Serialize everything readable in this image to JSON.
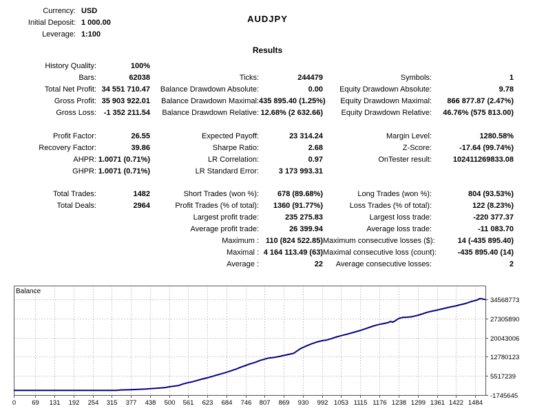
{
  "header": {
    "rows": [
      [
        "Currency:",
        "USD"
      ],
      [
        "Initial Deposit:",
        "1 000.00"
      ],
      [
        "Leverage:",
        "1:100"
      ]
    ],
    "symbol": "AUDJPY",
    "results_title": "Results"
  },
  "stats": {
    "block1": {
      "rows": [
        [
          "History Quality:",
          "100%",
          "",
          "",
          "",
          ""
        ],
        [
          "Bars:",
          "62038",
          "Ticks:",
          "244479",
          "Symbols:",
          "1"
        ],
        [
          "Total Net Profit:",
          "34 551 710.47",
          "Balance Drawdown Absolute:",
          "0.00",
          "Equity Drawdown Absolute:",
          "9.78"
        ],
        [
          "Gross Profit:",
          "35 903 922.01",
          "Balance Drawdown Maximal:",
          "435 895.40 (1.25%)",
          "Equity Drawdown Maximal:",
          "866 877.87 (2.47%)"
        ],
        [
          "Gross Loss:",
          "-1 352 211.54",
          "Balance Drawdown Relative:",
          "12.68% (2 632.66)",
          "Equity Drawdown Relative:",
          "46.76% (575 813.00)"
        ]
      ]
    },
    "block2": {
      "rows": [
        [
          "Profit Factor:",
          "26.55",
          "Expected Payoff:",
          "23 314.24",
          "Margin Level:",
          "1280.58%"
        ],
        [
          "Recovery Factor:",
          "39.86",
          "Sharpe Ratio:",
          "2.68",
          "Z-Score:",
          "-17.64 (99.74%)"
        ],
        [
          "AHPR:",
          "1.0071 (0.71%)",
          "LR Correlation:",
          "0.97",
          "OnTester result:",
          "102411269833.08"
        ],
        [
          "GHPR:",
          "1.0071 (0.71%)",
          "LR Standard Error:",
          "3 173 993.31",
          "",
          ""
        ]
      ]
    },
    "block3": {
      "rows": [
        [
          "Total Trades:",
          "1482",
          "Short Trades (won %):",
          "678 (89.68%)",
          "Long Trades (won %):",
          "804 (93.53%)"
        ],
        [
          "Total Deals:",
          "2964",
          "Profit Trades (% of total):",
          "1360 (91.77%)",
          "Loss Trades (% of total):",
          "122 (8.23%)"
        ],
        [
          "",
          "",
          "Largest profit trade:",
          "235 275.83",
          "Largest loss trade:",
          "-220 377.37"
        ],
        [
          "",
          "",
          "Average profit trade:",
          "26 399.94",
          "Average loss trade:",
          "-11 083.70"
        ],
        [
          "",
          "",
          "Maximum :",
          "110 (824 522.85)",
          "Maximum consecutive losses ($):",
          "14 (-435 895.40)"
        ],
        [
          "",
          "",
          "Maximal :",
          "4 164 113.49 (63)",
          "Maximal consecutive loss (count):",
          "-435 895.40 (14)"
        ],
        [
          "",
          "",
          "Average :",
          "22",
          "Average consecutive losses:",
          "2"
        ]
      ]
    }
  },
  "chart_data": {
    "type": "line",
    "title": "Balance",
    "legend_position": "top-left-inside",
    "grid": "dashed",
    "line_color": "#000080",
    "grid_color": "#c9c9c9",
    "border_color": "#555555",
    "x_ticks": [
      0,
      69,
      131,
      192,
      254,
      315,
      377,
      438,
      500,
      561,
      623,
      684,
      746,
      807,
      869,
      930,
      992,
      1053,
      1115,
      1176,
      1238,
      1299,
      1361,
      1422,
      1484
    ],
    "y_ticks": [
      34568773,
      27305890,
      20043006,
      12780123,
      5517239,
      -1745645
    ],
    "x_range": [
      0,
      1517
    ],
    "y_range_plot": [
      -1745645,
      39800000
    ],
    "series": [
      {
        "name": "Balance",
        "points": [
          [
            0,
            1000
          ],
          [
            330,
            1000
          ],
          [
            345,
            180000
          ],
          [
            377,
            300000
          ],
          [
            400,
            430000
          ],
          [
            425,
            560000
          ],
          [
            438,
            660000
          ],
          [
            455,
            800000
          ],
          [
            470,
            950000
          ],
          [
            485,
            1060000
          ],
          [
            500,
            1400000
          ],
          [
            515,
            1620000
          ],
          [
            530,
            1870000
          ],
          [
            545,
            2500000
          ],
          [
            561,
            2950000
          ],
          [
            575,
            3300000
          ],
          [
            590,
            3800000
          ],
          [
            605,
            4300000
          ],
          [
            623,
            4800000
          ],
          [
            640,
            5400000
          ],
          [
            655,
            5900000
          ],
          [
            670,
            6400000
          ],
          [
            684,
            6900000
          ],
          [
            700,
            7500000
          ],
          [
            715,
            8100000
          ],
          [
            730,
            8800000
          ],
          [
            746,
            9500000
          ],
          [
            760,
            10100000
          ],
          [
            777,
            10700000
          ],
          [
            790,
            11300000
          ],
          [
            807,
            11900000
          ],
          [
            820,
            12300000
          ],
          [
            835,
            12500000
          ],
          [
            855,
            12900000
          ],
          [
            869,
            13300000
          ],
          [
            885,
            13700000
          ],
          [
            900,
            14100000
          ],
          [
            910,
            14900000
          ],
          [
            920,
            15700000
          ],
          [
            930,
            16300000
          ],
          [
            945,
            17100000
          ],
          [
            960,
            17800000
          ],
          [
            975,
            18400000
          ],
          [
            992,
            18900000
          ],
          [
            1005,
            19100000
          ],
          [
            1020,
            19600000
          ],
          [
            1035,
            20200000
          ],
          [
            1053,
            20800000
          ],
          [
            1070,
            21300000
          ],
          [
            1085,
            21800000
          ],
          [
            1100,
            22300000
          ],
          [
            1115,
            22800000
          ],
          [
            1130,
            23400000
          ],
          [
            1145,
            24000000
          ],
          [
            1160,
            24600000
          ],
          [
            1176,
            25100000
          ],
          [
            1190,
            25400000
          ],
          [
            1205,
            25800000
          ],
          [
            1212,
            26200000
          ],
          [
            1218,
            25900000
          ],
          [
            1225,
            26300000
          ],
          [
            1238,
            27300000
          ],
          [
            1250,
            27700000
          ],
          [
            1265,
            27800000
          ],
          [
            1280,
            28000000
          ],
          [
            1299,
            28500000
          ],
          [
            1315,
            29100000
          ],
          [
            1330,
            29700000
          ],
          [
            1345,
            30100000
          ],
          [
            1361,
            30500000
          ],
          [
            1375,
            30900000
          ],
          [
            1390,
            31300000
          ],
          [
            1405,
            31700000
          ],
          [
            1422,
            32100000
          ],
          [
            1435,
            32500000
          ],
          [
            1450,
            32900000
          ],
          [
            1460,
            33300000
          ],
          [
            1470,
            33700000
          ],
          [
            1480,
            34000000
          ],
          [
            1490,
            34300000
          ],
          [
            1497,
            34800000
          ],
          [
            1503,
            34900000
          ],
          [
            1510,
            34650000
          ],
          [
            1517,
            34568773
          ]
        ]
      }
    ]
  }
}
